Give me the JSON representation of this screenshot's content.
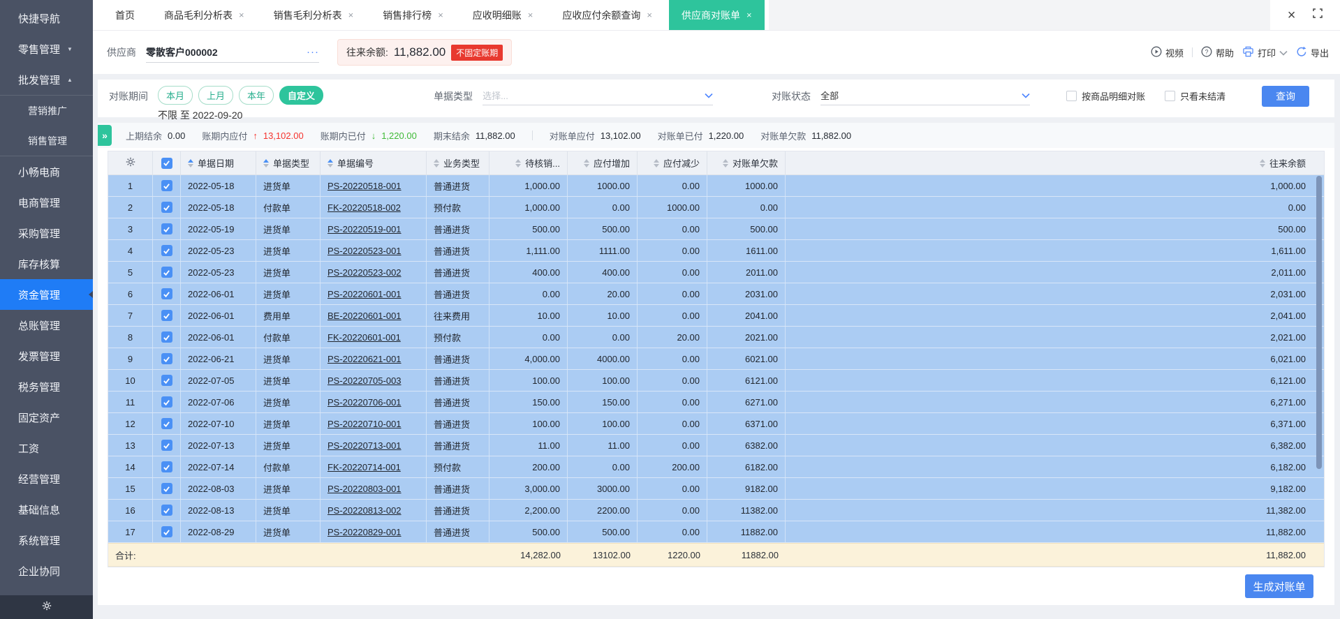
{
  "sidebar": {
    "items": [
      {
        "label": "快捷导航"
      },
      {
        "label": "零售管理",
        "chevron": "down"
      },
      {
        "label": "批发管理",
        "chevron": "up"
      },
      {
        "label": "营销推广",
        "sub": true
      },
      {
        "label": "销售管理",
        "sub": true
      },
      {
        "label": "小畅电商"
      },
      {
        "label": "电商管理"
      },
      {
        "label": "采购管理"
      },
      {
        "label": "库存核算"
      },
      {
        "label": "资金管理",
        "active": true
      },
      {
        "label": "总账管理"
      },
      {
        "label": "发票管理"
      },
      {
        "label": "税务管理"
      },
      {
        "label": "固定资产"
      },
      {
        "label": "工资"
      },
      {
        "label": "经营管理"
      },
      {
        "label": "基础信息"
      },
      {
        "label": "系统管理"
      },
      {
        "label": "企业协同"
      }
    ]
  },
  "tabbar": {
    "tabs": [
      {
        "label": "首页",
        "closable": false
      },
      {
        "label": "商品毛利分析表",
        "closable": true
      },
      {
        "label": "销售毛利分析表",
        "closable": true
      },
      {
        "label": "销售排行榜",
        "closable": true
      },
      {
        "label": "应收明细账",
        "closable": true
      },
      {
        "label": "应收应付余额查询",
        "closable": true
      },
      {
        "label": "供应商对账单",
        "closable": true,
        "active": true
      }
    ],
    "close_glyph": "×"
  },
  "supplier_bar": {
    "field_label": "供应商",
    "field_value": "零散客户000002",
    "ellipsis": "···",
    "balance_label": "往来余额:",
    "balance_value": "11,882.00",
    "badge": "不固定账期",
    "actions": {
      "video": "视频",
      "help": "帮助",
      "print": "打印",
      "export": "导出"
    }
  },
  "filters": {
    "period_label": "对账期间",
    "period_options": [
      "本月",
      "上月",
      "本年"
    ],
    "period_active": "自定义",
    "period_range": "不限 至 2022-09-20",
    "doc_type_label": "单据类型",
    "doc_type_placeholder": "选择...",
    "status_label": "对账状态",
    "status_value": "全部",
    "checkbox_detail": "按商品明细对账",
    "checkbox_unsettled": "只看未结清",
    "search_button": "查询"
  },
  "summary": {
    "expander_glyph": "»",
    "items": [
      {
        "label": "上期结余",
        "value": "0.00"
      },
      {
        "label": "账期内应付",
        "value": "13,102.00",
        "arrow": "up",
        "color": "red"
      },
      {
        "label": "账期内已付",
        "value": "1,220.00",
        "arrow": "down",
        "color": "green"
      },
      {
        "label": "期末结余",
        "value": "11,882.00"
      },
      {
        "label": "对账单应付",
        "value": "13,102.00",
        "divider_before": true
      },
      {
        "label": "对账单已付",
        "value": "1,220.00"
      },
      {
        "label": "对账单欠款",
        "value": "11,882.00"
      }
    ]
  },
  "table": {
    "columns": [
      {
        "key": "row-number",
        "label": "",
        "type": "gear"
      },
      {
        "key": "row-checkbox",
        "label": "",
        "type": "checkbox",
        "checked": true
      },
      {
        "key": "doc-date",
        "label": "单据日期",
        "sorted": true
      },
      {
        "key": "doc-type",
        "label": "单据类型",
        "sorted": true
      },
      {
        "key": "doc-no",
        "label": "单据编号",
        "sorted": true
      },
      {
        "key": "biz-type",
        "label": "业务类型",
        "sortable": true
      },
      {
        "key": "pending-writeoff",
        "label": "待核销...",
        "sortable": true,
        "align": "right"
      },
      {
        "key": "payable-increase",
        "label": "应付增加",
        "sortable": true,
        "align": "right"
      },
      {
        "key": "payable-decrease",
        "label": "应付减少",
        "sortable": true,
        "align": "right"
      },
      {
        "key": "statement-debt",
        "label": "对账单欠款",
        "sortable": true,
        "align": "right"
      },
      {
        "key": "filler",
        "label": "",
        "type": "filler"
      },
      {
        "key": "balance",
        "label": "往来余额",
        "sortable": true,
        "align": "right"
      }
    ],
    "rows": [
      {
        "no": "1",
        "checked": true,
        "date": "2022-05-18",
        "doc_type": "进货单",
        "doc_no": "PS-20220518-001",
        "biz_type": "普通进货",
        "pending": "1,000.00",
        "add": "1000.00",
        "sub": "0.00",
        "owe": "1000.00",
        "balance": "1,000.00"
      },
      {
        "no": "2",
        "checked": true,
        "date": "2022-05-18",
        "doc_type": "付款单",
        "doc_no": "FK-20220518-002",
        "biz_type": "预付款",
        "pending": "1,000.00",
        "add": "0.00",
        "sub": "1000.00",
        "owe": "0.00",
        "balance": "0.00"
      },
      {
        "no": "3",
        "checked": true,
        "date": "2022-05-19",
        "doc_type": "进货单",
        "doc_no": "PS-20220519-001",
        "biz_type": "普通进货",
        "pending": "500.00",
        "add": "500.00",
        "sub": "0.00",
        "owe": "500.00",
        "balance": "500.00"
      },
      {
        "no": "4",
        "checked": true,
        "date": "2022-05-23",
        "doc_type": "进货单",
        "doc_no": "PS-20220523-001",
        "biz_type": "普通进货",
        "pending": "1,111.00",
        "add": "1111.00",
        "sub": "0.00",
        "owe": "1611.00",
        "balance": "1,611.00"
      },
      {
        "no": "5",
        "checked": true,
        "date": "2022-05-23",
        "doc_type": "进货单",
        "doc_no": "PS-20220523-002",
        "biz_type": "普通进货",
        "pending": "400.00",
        "add": "400.00",
        "sub": "0.00",
        "owe": "2011.00",
        "balance": "2,011.00"
      },
      {
        "no": "6",
        "checked": true,
        "date": "2022-06-01",
        "doc_type": "进货单",
        "doc_no": "PS-20220601-001",
        "biz_type": "普通进货",
        "pending": "0.00",
        "add": "20.00",
        "sub": "0.00",
        "owe": "2031.00",
        "balance": "2,031.00"
      },
      {
        "no": "7",
        "checked": true,
        "date": "2022-06-01",
        "doc_type": "费用单",
        "doc_no": "BE-20220601-001",
        "biz_type": "往来费用",
        "pending": "10.00",
        "add": "10.00",
        "sub": "0.00",
        "owe": "2041.00",
        "balance": "2,041.00"
      },
      {
        "no": "8",
        "checked": true,
        "date": "2022-06-01",
        "doc_type": "付款单",
        "doc_no": "FK-20220601-001",
        "biz_type": "预付款",
        "pending": "0.00",
        "add": "0.00",
        "sub": "20.00",
        "owe": "2021.00",
        "balance": "2,021.00"
      },
      {
        "no": "9",
        "checked": true,
        "date": "2022-06-21",
        "doc_type": "进货单",
        "doc_no": "PS-20220621-001",
        "biz_type": "普通进货",
        "pending": "4,000.00",
        "add": "4000.00",
        "sub": "0.00",
        "owe": "6021.00",
        "balance": "6,021.00"
      },
      {
        "no": "10",
        "checked": true,
        "date": "2022-07-05",
        "doc_type": "进货单",
        "doc_no": "PS-20220705-003",
        "biz_type": "普通进货",
        "pending": "100.00",
        "add": "100.00",
        "sub": "0.00",
        "owe": "6121.00",
        "balance": "6,121.00"
      },
      {
        "no": "11",
        "checked": true,
        "date": "2022-07-06",
        "doc_type": "进货单",
        "doc_no": "PS-20220706-001",
        "biz_type": "普通进货",
        "pending": "150.00",
        "add": "150.00",
        "sub": "0.00",
        "owe": "6271.00",
        "balance": "6,271.00"
      },
      {
        "no": "12",
        "checked": true,
        "date": "2022-07-10",
        "doc_type": "进货单",
        "doc_no": "PS-20220710-001",
        "biz_type": "普通进货",
        "pending": "100.00",
        "add": "100.00",
        "sub": "0.00",
        "owe": "6371.00",
        "balance": "6,371.00"
      },
      {
        "no": "13",
        "checked": true,
        "date": "2022-07-13",
        "doc_type": "进货单",
        "doc_no": "PS-20220713-001",
        "biz_type": "普通进货",
        "pending": "11.00",
        "add": "11.00",
        "sub": "0.00",
        "owe": "6382.00",
        "balance": "6,382.00"
      },
      {
        "no": "14",
        "checked": true,
        "date": "2022-07-14",
        "doc_type": "付款单",
        "doc_no": "FK-20220714-001",
        "biz_type": "预付款",
        "pending": "200.00",
        "add": "0.00",
        "sub": "200.00",
        "owe": "6182.00",
        "balance": "6,182.00"
      },
      {
        "no": "15",
        "checked": true,
        "date": "2022-08-03",
        "doc_type": "进货单",
        "doc_no": "PS-20220803-001",
        "biz_type": "普通进货",
        "pending": "3,000.00",
        "add": "3000.00",
        "sub": "0.00",
        "owe": "9182.00",
        "balance": "9,182.00"
      },
      {
        "no": "16",
        "checked": true,
        "date": "2022-08-13",
        "doc_type": "进货单",
        "doc_no": "PS-20220813-002",
        "biz_type": "普通进货",
        "pending": "2,200.00",
        "add": "2200.00",
        "sub": "0.00",
        "owe": "11382.00",
        "balance": "11,382.00"
      },
      {
        "no": "17",
        "checked": true,
        "date": "2022-08-29",
        "doc_type": "进货单",
        "doc_no": "PS-20220829-001",
        "biz_type": "普通进货",
        "pending": "500.00",
        "add": "500.00",
        "sub": "0.00",
        "owe": "11882.00",
        "balance": "11,882.00"
      }
    ],
    "total": {
      "label": "合计:",
      "pending": "14,282.00",
      "add": "13102.00",
      "sub": "1220.00",
      "owe": "11882.00",
      "balance": "11,882.00"
    }
  },
  "footer": {
    "generate_button": "生成对账单"
  },
  "colors": {
    "tab_active": "#2ec49c",
    "sidebar_active": "#1f7cf6",
    "badge_red": "#e8392f",
    "row_selected": "#abccf3",
    "total_row": "#fbf2da",
    "primary_button": "#4a87f0",
    "amount_red": "#f5342e",
    "amount_green": "#3fba37"
  }
}
